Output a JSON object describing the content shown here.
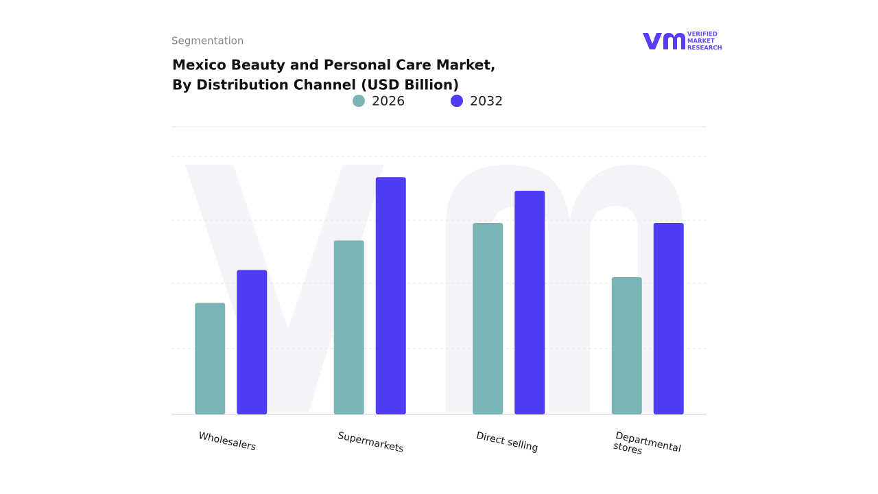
{
  "header": {
    "kicker": "Segmentation",
    "logo": [
      "VERIFIED",
      "MARKET",
      "RESEARCH"
    ]
  },
  "chart_data": {
    "type": "bar",
    "title": [
      "Mexico Beauty and Personal Care Market,",
      "By Distribution Channel (USD Billion)"
    ],
    "categories": [
      "Wholesalers",
      "Supermarkets",
      "Direct selling",
      "Departmental stores"
    ],
    "series": [
      {
        "name": "2026",
        "color": "#7ab5b6",
        "values": [
          1.73,
          2.7,
          2.97,
          2.13
        ]
      },
      {
        "name": "2032",
        "color": "#4f3cf5",
        "values": [
          2.24,
          3.68,
          3.47,
          2.97
        ]
      }
    ],
    "ylim": [
      0,
      4.46
    ],
    "grid": true
  }
}
